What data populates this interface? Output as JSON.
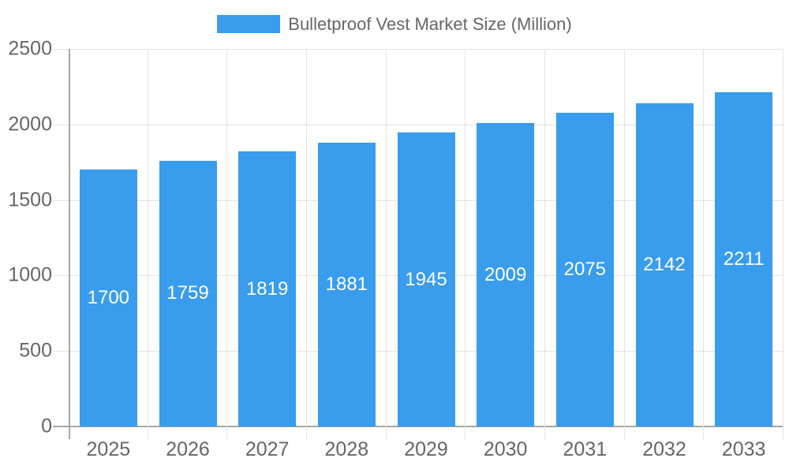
{
  "chart_data": {
    "type": "bar",
    "legend": "Bulletproof Vest Market Size (Million)",
    "categories": [
      "2025",
      "2026",
      "2027",
      "2028",
      "2029",
      "2030",
      "2031",
      "2032",
      "2033"
    ],
    "values": [
      1700,
      1759,
      1819,
      1881,
      1945,
      2009,
      2075,
      2142,
      2211
    ],
    "ylim": [
      0,
      2500
    ],
    "yticks": [
      0,
      500,
      1000,
      1500,
      2000,
      2500
    ],
    "grid": true,
    "legend_position": "top",
    "colors": {
      "bar": "#399CEC",
      "bar_value_label": "#ffffff",
      "tick_label": "#666666",
      "legend_label": "#666666",
      "gridline": "#e3e3e3",
      "axis_line": "#a6a6a6",
      "background": "#ffffff"
    }
  }
}
